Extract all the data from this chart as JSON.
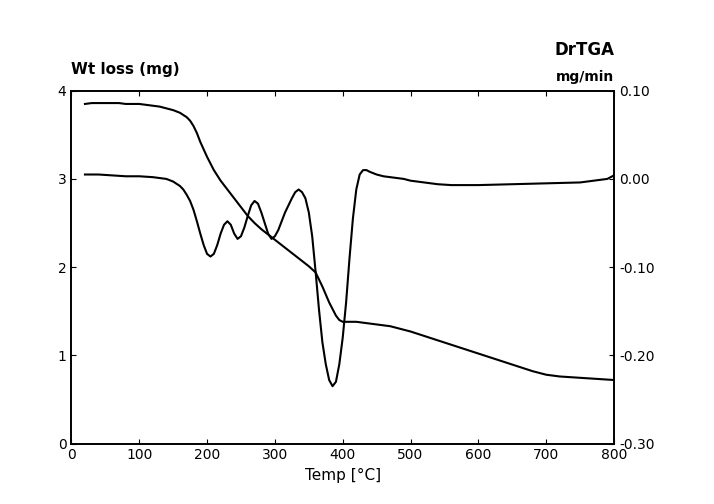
{
  "xlabel": "Temp [°C]",
  "ylabel_left": "Wt loss (mg)",
  "ylabel_right": "DrTGA\nmg/min",
  "xlim": [
    0,
    800
  ],
  "ylim_left": [
    0.0,
    4.0
  ],
  "ylim_right": [
    -0.3,
    0.1
  ],
  "yticks_left": [
    0.0,
    1.0,
    2.0,
    3.0,
    4.0
  ],
  "yticks_right": [
    -0.3,
    -0.2,
    -0.1,
    0.0,
    0.1
  ],
  "xticks": [
    0,
    100,
    200,
    300,
    400,
    500,
    600,
    700,
    800
  ],
  "background_color": "#ffffff",
  "line_color": "#000000",
  "tga_x": [
    20,
    30,
    40,
    50,
    60,
    70,
    80,
    90,
    100,
    110,
    120,
    130,
    140,
    150,
    160,
    170,
    175,
    180,
    185,
    190,
    200,
    210,
    220,
    230,
    240,
    250,
    260,
    270,
    280,
    290,
    300,
    310,
    320,
    330,
    340,
    350,
    360,
    370,
    380,
    390,
    395,
    400,
    405,
    410,
    415,
    420,
    430,
    440,
    450,
    460,
    470,
    480,
    490,
    500,
    520,
    540,
    560,
    580,
    600,
    620,
    640,
    660,
    680,
    700,
    720,
    740,
    760,
    780,
    800
  ],
  "tga_y": [
    3.85,
    3.86,
    3.86,
    3.86,
    3.86,
    3.86,
    3.85,
    3.85,
    3.85,
    3.84,
    3.83,
    3.82,
    3.8,
    3.78,
    3.75,
    3.7,
    3.66,
    3.6,
    3.52,
    3.42,
    3.25,
    3.1,
    2.98,
    2.88,
    2.78,
    2.68,
    2.58,
    2.5,
    2.43,
    2.37,
    2.31,
    2.25,
    2.19,
    2.13,
    2.07,
    2.01,
    1.94,
    1.78,
    1.6,
    1.45,
    1.4,
    1.38,
    1.38,
    1.38,
    1.38,
    1.38,
    1.37,
    1.36,
    1.35,
    1.34,
    1.33,
    1.31,
    1.29,
    1.27,
    1.22,
    1.17,
    1.12,
    1.07,
    1.02,
    0.97,
    0.92,
    0.87,
    0.82,
    0.78,
    0.76,
    0.75,
    0.74,
    0.73,
    0.72
  ],
  "dtg_x": [
    20,
    40,
    60,
    80,
    100,
    120,
    140,
    150,
    160,
    165,
    170,
    175,
    180,
    185,
    190,
    195,
    200,
    205,
    210,
    215,
    220,
    225,
    230,
    235,
    240,
    245,
    250,
    255,
    260,
    265,
    270,
    275,
    280,
    285,
    290,
    295,
    300,
    305,
    310,
    315,
    320,
    325,
    330,
    335,
    340,
    345,
    350,
    355,
    360,
    365,
    370,
    375,
    380,
    385,
    390,
    395,
    400,
    405,
    410,
    415,
    420,
    425,
    430,
    435,
    440,
    450,
    460,
    470,
    480,
    490,
    500,
    520,
    540,
    560,
    580,
    600,
    650,
    700,
    750,
    790,
    800
  ],
  "dtg_y": [
    0.005,
    0.005,
    0.004,
    0.003,
    0.003,
    0.002,
    0.0,
    -0.003,
    -0.008,
    -0.012,
    -0.018,
    -0.025,
    -0.035,
    -0.048,
    -0.062,
    -0.075,
    -0.085,
    -0.088,
    -0.085,
    -0.075,
    -0.062,
    -0.052,
    -0.048,
    -0.052,
    -0.062,
    -0.068,
    -0.065,
    -0.055,
    -0.042,
    -0.03,
    -0.025,
    -0.028,
    -0.038,
    -0.05,
    -0.062,
    -0.068,
    -0.065,
    -0.058,
    -0.048,
    -0.038,
    -0.03,
    -0.022,
    -0.015,
    -0.012,
    -0.015,
    -0.022,
    -0.038,
    -0.065,
    -0.105,
    -0.148,
    -0.185,
    -0.21,
    -0.228,
    -0.235,
    -0.23,
    -0.21,
    -0.18,
    -0.14,
    -0.09,
    -0.045,
    -0.012,
    0.005,
    0.01,
    0.01,
    0.008,
    0.005,
    0.003,
    0.002,
    0.001,
    0.0,
    -0.002,
    -0.004,
    -0.006,
    -0.007,
    -0.007,
    -0.007,
    -0.006,
    -0.005,
    -0.004,
    0.0,
    0.004
  ]
}
